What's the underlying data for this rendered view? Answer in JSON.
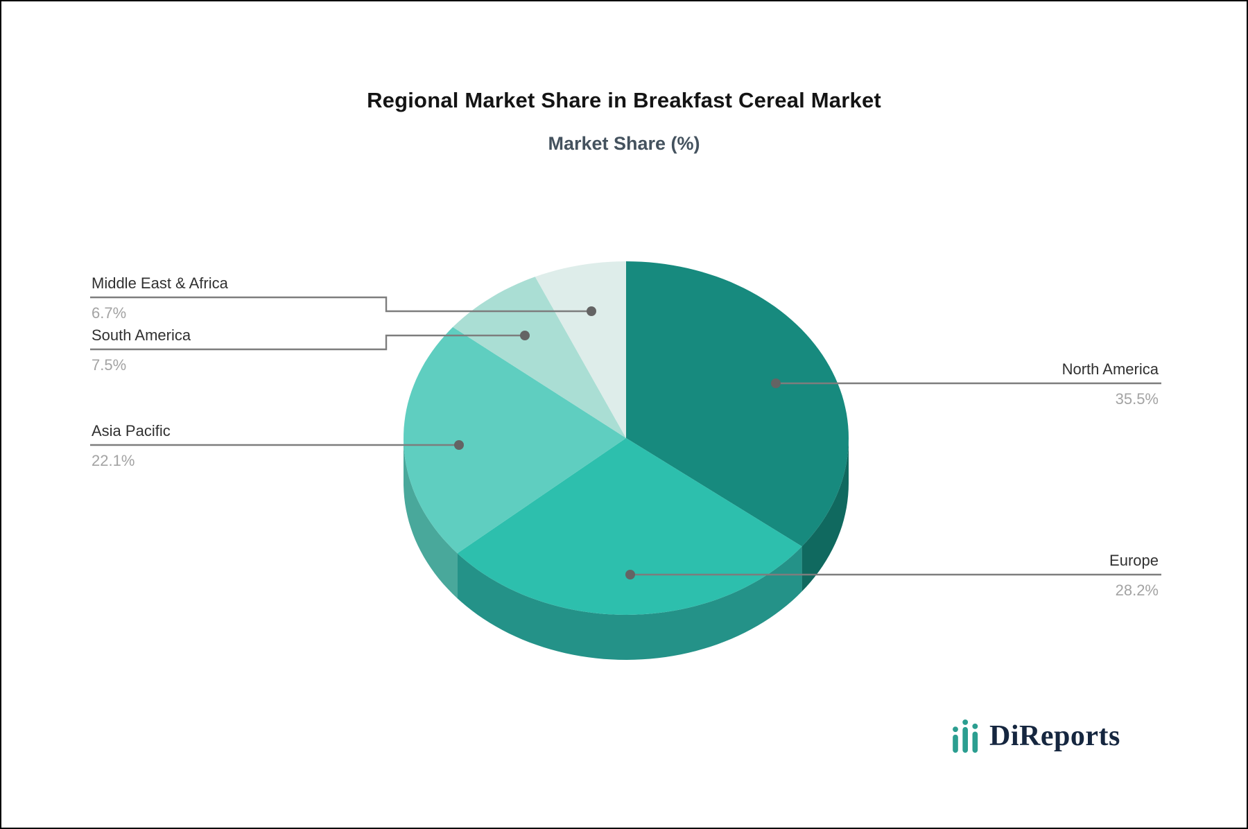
{
  "title": "Regional Market Share in Breakfast Cereal Market",
  "subtitle": "Market Share (%)",
  "chart_data": {
    "type": "pie",
    "title": "Regional Market Share in Breakfast Cereal Market",
    "subtitle": "Market Share (%)",
    "unit": "%",
    "effect": "3d",
    "direction": "clockwise",
    "start_angle_deg": 0,
    "labels": [
      "North America",
      "Europe",
      "Asia Pacific",
      "South America",
      "Middle East & Africa"
    ],
    "values": [
      35.5,
      28.2,
      22.1,
      7.5,
      6.7
    ],
    "display_values": [
      "35.5%",
      "28.2%",
      "22.1%",
      "7.5%",
      "6.7%"
    ],
    "colors": [
      "#178a7e",
      "#2dbfad",
      "#5fcec0",
      "#aaded4",
      "#deedea"
    ],
    "side_colors": [
      "#10695f",
      "#249288",
      "#49a89b",
      "#8cc8bd",
      "#c2ded8"
    ],
    "legend_position": "callout-labels"
  },
  "leader": {
    "line_color": "#7d7d7d",
    "dot_color": "#646464"
  },
  "logo": {
    "text": "DiReports",
    "icon": "bar-chart-icon",
    "icon_color": "#2b9e90",
    "text_color": "#15263f"
  }
}
